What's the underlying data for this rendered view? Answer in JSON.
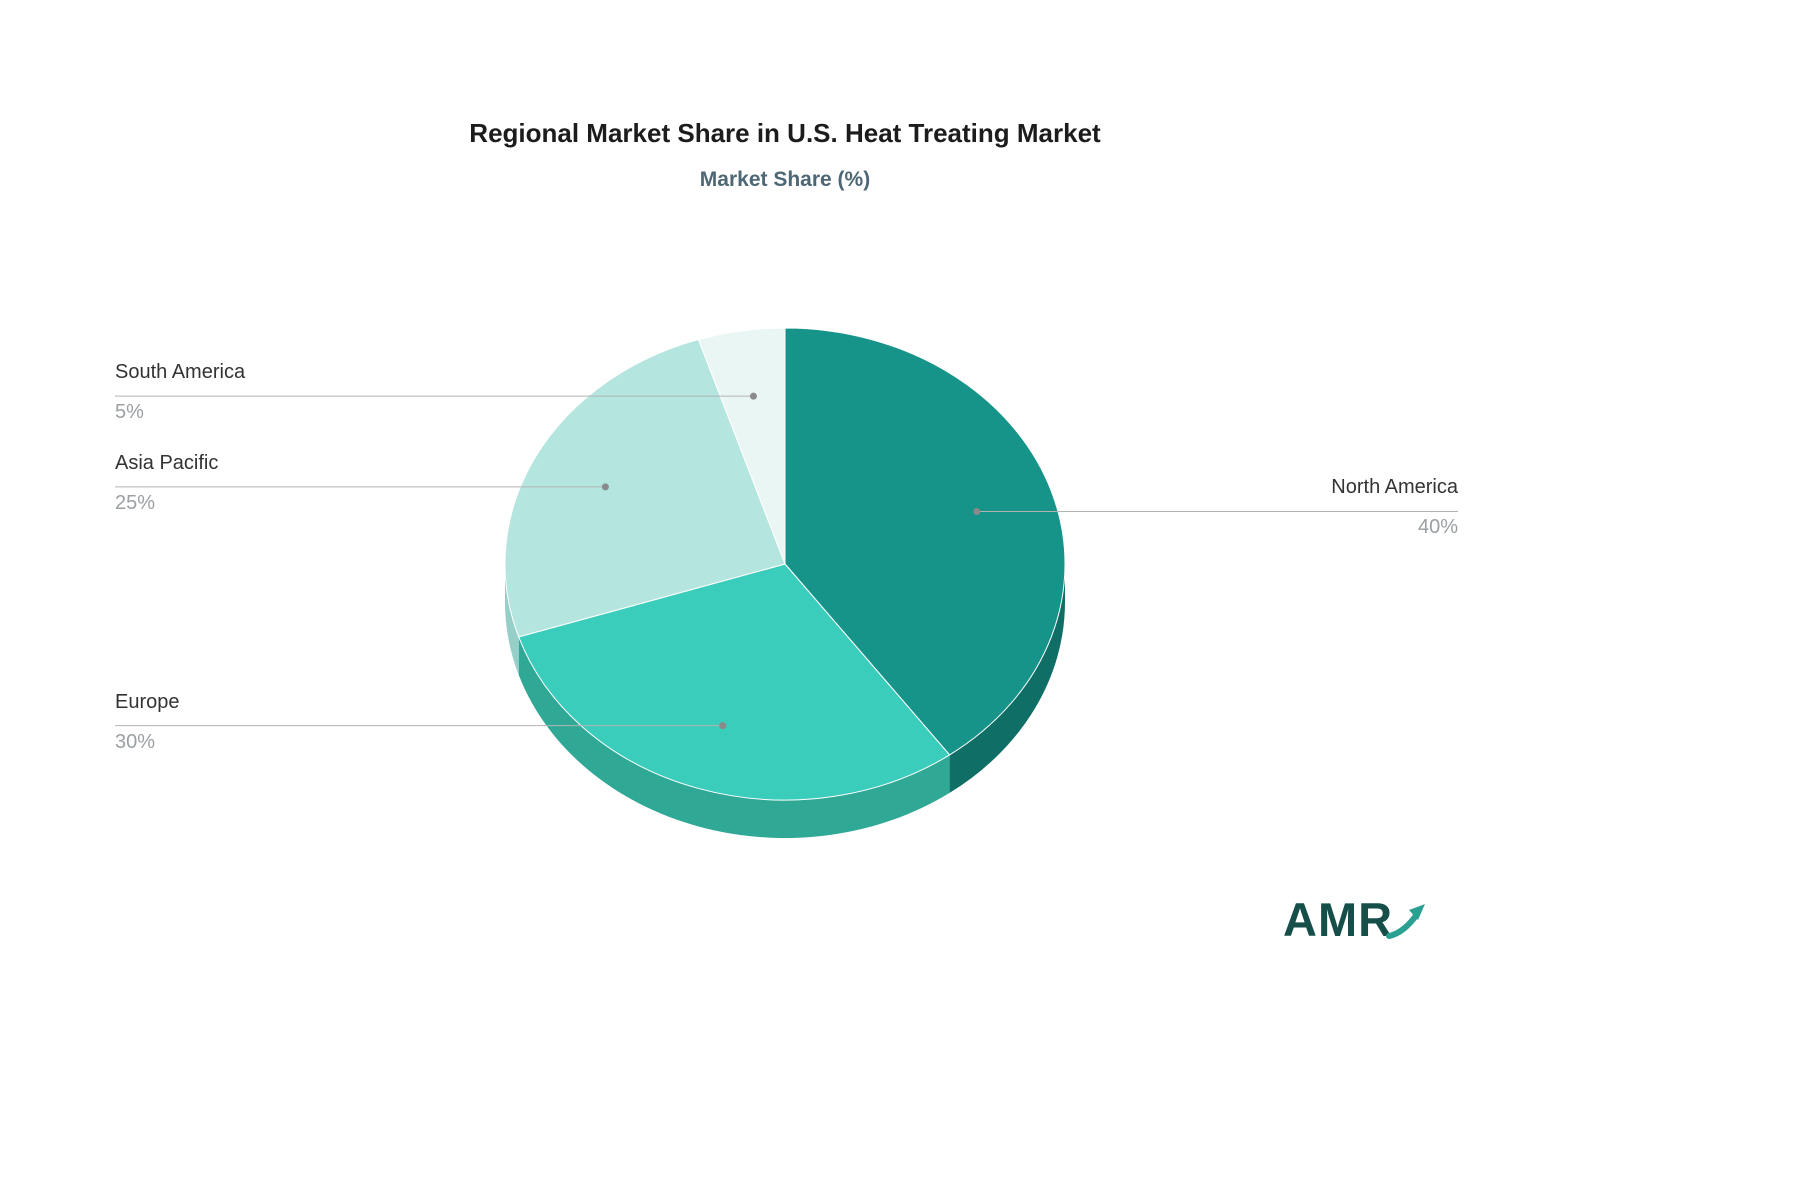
{
  "chart_data": {
    "type": "pie",
    "title": "Regional Market Share in U.S. Heat Treating Market",
    "subtitle": "Market Share (%)",
    "unit": "%",
    "direction": "clockwise",
    "start_angle_deg": 0,
    "legend": "none",
    "slices": [
      {
        "label": "North America",
        "value": 40,
        "pct_text": "40%",
        "color": "#17948A",
        "side_color": "#0F6E66"
      },
      {
        "label": "Europe",
        "value": 30,
        "pct_text": "30%",
        "color": "#3BCDBB",
        "side_color": "#2FA896"
      },
      {
        "label": "Asia Pacific",
        "value": 25,
        "pct_text": "25%",
        "color": "#B5E5DF",
        "side_color": "#96CFC7"
      },
      {
        "label": "South America",
        "value": 5,
        "pct_text": "5%",
        "color": "#EAF6F4",
        "side_color": "#CBE6E1"
      }
    ]
  },
  "colors": {
    "label_text": "#333333",
    "value_text": "#9AA0A3",
    "leader_line": "#B3B3B3",
    "leader_dot": "#8A8A8A",
    "background": "#FFFFFF"
  },
  "logo": {
    "text": "AMR"
  }
}
